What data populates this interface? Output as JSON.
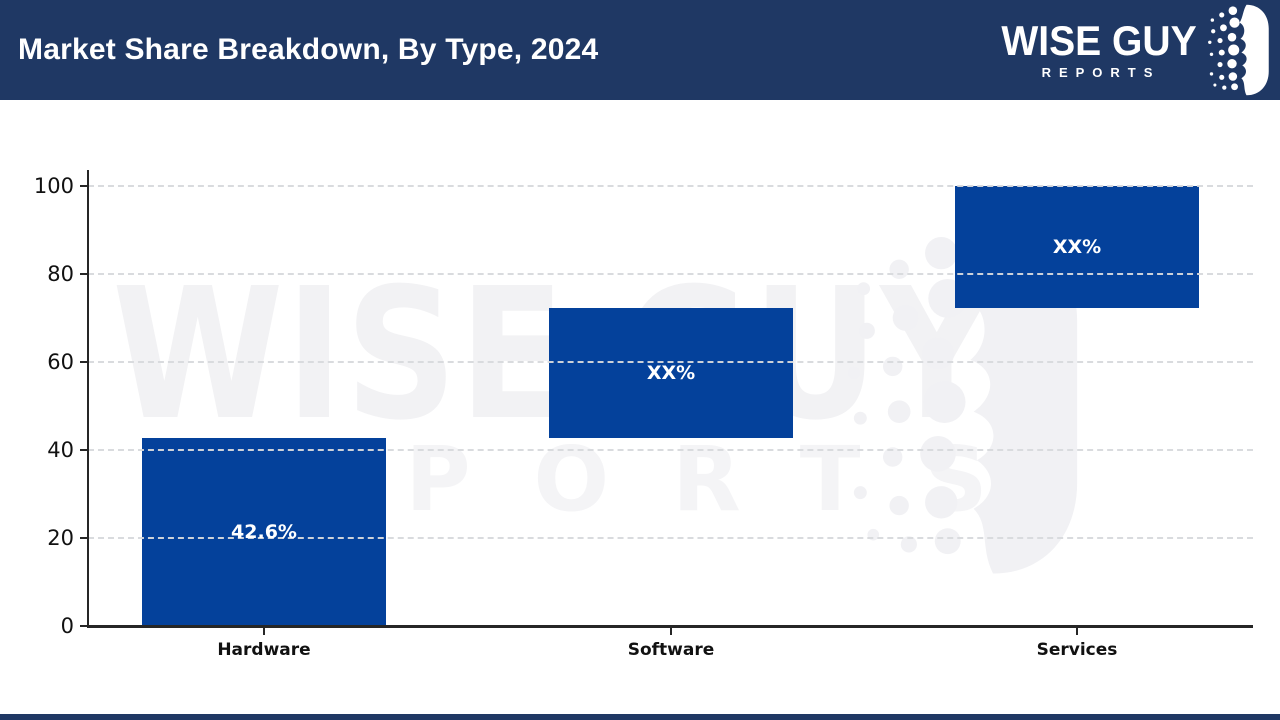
{
  "header": {
    "title": "Market Share Breakdown, By Type, 2024",
    "logo": {
      "line1": "WISE GUY",
      "line2": "REPORTS"
    }
  },
  "watermark": {
    "line1": "WISE GUY",
    "line2": "REPORTS"
  },
  "chart_data": {
    "type": "bar",
    "subtype": "waterfall",
    "title": "Market Share Breakdown, By Type, 2024",
    "categories": [
      "Hardware",
      "Software",
      "Services"
    ],
    "segments": [
      {
        "category": "Hardware",
        "start": 0,
        "end": 42.6,
        "label": "42.6%"
      },
      {
        "category": "Software",
        "start": 42.6,
        "end": 72.3,
        "label": "XX%"
      },
      {
        "category": "Services",
        "start": 72.3,
        "end": 100,
        "label": "XX%"
      }
    ],
    "xlabel": "",
    "ylabel": "",
    "ylim": [
      0,
      100
    ],
    "yticks": [
      0,
      20,
      40,
      60,
      80,
      100
    ],
    "grid": "dashed-horizontal",
    "legend": "none",
    "bar_color": "#04419b",
    "label_color": "#ffffff"
  },
  "colors": {
    "header_bg": "#1f3864",
    "footer_bg": "#1f3864",
    "bar": "#04419b",
    "grid": "#d9d9d9",
    "axis": "#262626",
    "watermark": "#f2f2f4",
    "background": "#ffffff"
  }
}
